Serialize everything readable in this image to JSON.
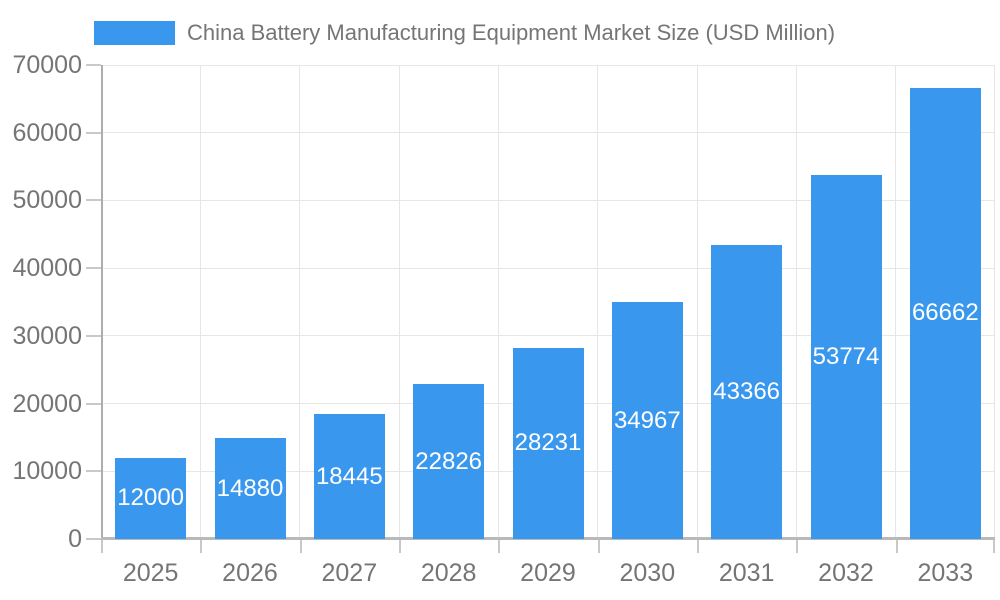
{
  "page": {
    "background_color": "#ffffff"
  },
  "legend": {
    "swatch_color": "#3998EE",
    "label": "China Battery Manufacturing Equipment Market Size (USD Million)"
  },
  "chart_data": {
    "type": "bar",
    "title": "China Battery Manufacturing Equipment Market Size (USD Million)",
    "categories": [
      "2025",
      "2026",
      "2027",
      "2028",
      "2029",
      "2030",
      "2031",
      "2032",
      "2033"
    ],
    "values": [
      12000,
      14880,
      18445,
      22826,
      28231,
      34967,
      43366,
      53774,
      66662
    ],
    "value_labels": [
      "12000",
      "14880",
      "18445",
      "22826",
      "28231",
      "34967",
      "43366",
      "53774",
      "66662"
    ],
    "xlabel": "",
    "ylabel": "",
    "ylim": [
      0,
      70000
    ],
    "yticks": [
      0,
      10000,
      20000,
      30000,
      40000,
      50000,
      60000,
      70000
    ],
    "grid": true,
    "legend_position": "top-left",
    "bar_color": "#3998EE",
    "value_label_color": "#ffffff",
    "axis_text_color": "#757575",
    "grid_color": "#e6e6e6",
    "axis_line_color": "#b3b3b3"
  }
}
